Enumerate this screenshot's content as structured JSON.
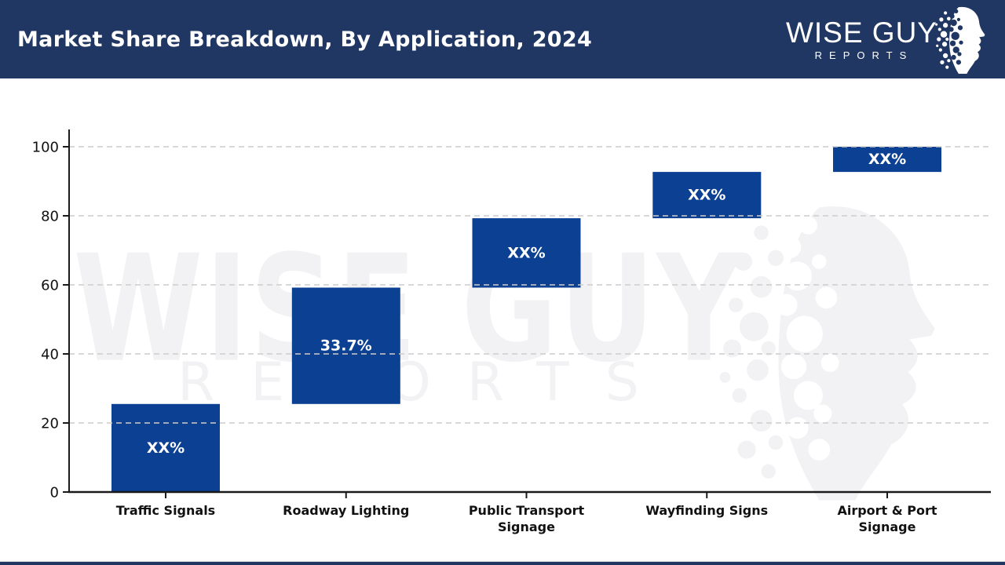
{
  "header": {
    "title": "Market Share Breakdown, By Application, 2024",
    "logo": {
      "line1": "WISE GUY",
      "line2": "REPORTS"
    }
  },
  "watermark": {
    "line1": "WISE GUY",
    "line2": "REPORTS"
  },
  "colors": {
    "header_bg": "#213763",
    "footer_bg": "#213763",
    "bar": "#0b4093",
    "bar_label": "#ffffff",
    "grid": "#cccccc",
    "axis": "#1a1a1a",
    "tick_label": "#111111",
    "watermark": "#f2f2f4"
  },
  "chart_data": {
    "type": "bar",
    "subtype": "waterfall",
    "title": "Market Share Breakdown, By Application, 2024",
    "xlabel": "",
    "ylabel": "",
    "ylim": [
      0,
      100
    ],
    "yticks": [
      0,
      20,
      40,
      60,
      80,
      100
    ],
    "grid": "horizontal-dashed",
    "legend": "none",
    "categories": [
      "Traffic Signals",
      "Roadway Lighting",
      "Public Transport Signage",
      "Wayfinding Signs",
      "Airport & Port Signage"
    ],
    "category_lines": [
      [
        "Traffic Signals"
      ],
      [
        "Roadway Lighting"
      ],
      [
        "Public Transport",
        "Signage"
      ],
      [
        "Wayfinding Signs"
      ],
      [
        "Airport & Port",
        "Signage"
      ]
    ],
    "segments": [
      {
        "category": "Traffic Signals",
        "start": 0,
        "end": 25.5,
        "value_label": "XX%"
      },
      {
        "category": "Roadway Lighting",
        "start": 25.5,
        "end": 59.2,
        "value_label": "33.7%"
      },
      {
        "category": "Public Transport Signage",
        "start": 59.2,
        "end": 79.3,
        "value_label": "XX%"
      },
      {
        "category": "Wayfinding Signs",
        "start": 79.3,
        "end": 92.7,
        "value_label": "XX%"
      },
      {
        "category": "Airport & Port Signage",
        "start": 92.7,
        "end": 100,
        "value_label": "XX%"
      }
    ]
  }
}
